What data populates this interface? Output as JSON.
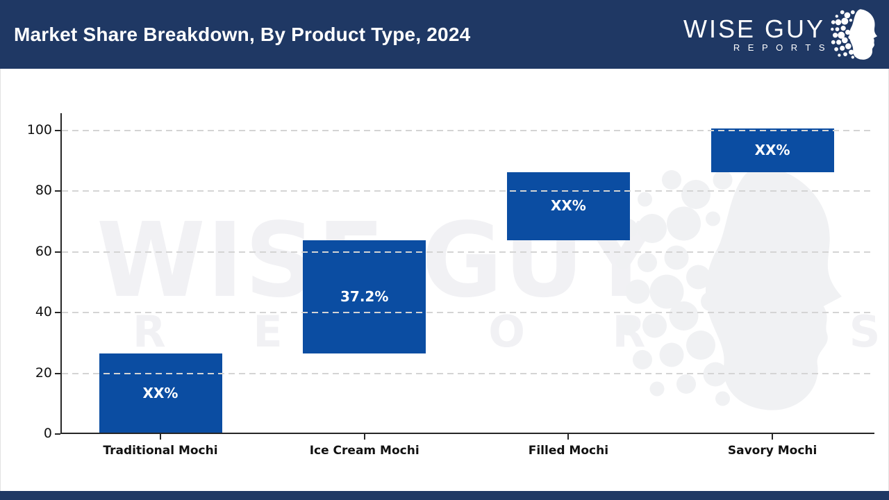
{
  "header": {
    "title": "Market Share Breakdown, By Product Type, 2024"
  },
  "logo": {
    "line1": "WISE GUY",
    "line2": "REPORTS",
    "face_icon": "dotted-head-profile"
  },
  "watermark": {
    "line1": "WISE GUY",
    "line2": "R E P O R T S",
    "face_icon": "dotted-head-profile"
  },
  "colors": {
    "header_navy": "#1f3864",
    "footer_navy": "#1f3864",
    "bar_blue": "#0b4da2",
    "grid_gray": "#d4d4d4",
    "watermark_gray": "#f1f1f4",
    "axis_dark": "#262626",
    "text_white": "#ffffff"
  },
  "chart_data": {
    "type": "bar",
    "variant": "floating-waterfall",
    "title": "Market Share Breakdown, By Product Type, 2024",
    "categories": [
      "Traditional Mochi",
      "Ice Cream Mochi",
      "Filled Mochi",
      "Savory Mochi"
    ],
    "segments": [
      {
        "category": "Traditional Mochi",
        "start": 0,
        "end": 26.5,
        "label": "XX%"
      },
      {
        "category": "Ice Cream Mochi",
        "start": 26.5,
        "end": 63.7,
        "label": "37.2%"
      },
      {
        "category": "Filled Mochi",
        "start": 63.7,
        "end": 86.2,
        "label": "XX%"
      },
      {
        "category": "Savory Mochi",
        "start": 86.2,
        "end": 100.5,
        "label": "XX%"
      }
    ],
    "displayed_values": [
      "XX%",
      "37.2%",
      "XX%",
      "XX%"
    ],
    "xlabel": "",
    "ylabel": "",
    "ylim": [
      0,
      105
    ],
    "yticks": [
      0,
      20,
      40,
      60,
      80,
      100
    ],
    "grid": "horizontal dashed, drawn above bars",
    "legend": "none"
  }
}
